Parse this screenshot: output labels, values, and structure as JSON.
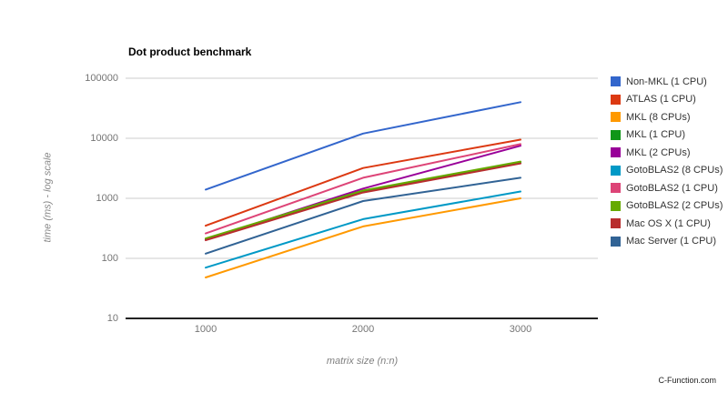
{
  "watermark": "C-Function.com",
  "chart_data": {
    "type": "line",
    "title": "Dot product benchmark",
    "xlabel": "matrix size (n:n)",
    "ylabel": "time (ms) - log scale",
    "y_scale": "log10",
    "ylim": [
      10,
      100000
    ],
    "grid": true,
    "legend_position": "right",
    "x": [
      1000,
      2000,
      3000
    ],
    "x_tick_labels": [
      "1000",
      "2000",
      "3000"
    ],
    "y_ticks": [
      100000,
      10000,
      1000,
      100,
      10
    ],
    "axis_color": "#222222",
    "gridline_color": "#cccccc",
    "series": [
      {
        "name": "Non-MKL (1 CPU)",
        "color": "#3366CC",
        "values": [
          1400,
          12000,
          40000
        ]
      },
      {
        "name": "ATLAS (1 CPU)",
        "color": "#DC3912",
        "values": [
          350,
          3200,
          9500
        ]
      },
      {
        "name": "MKL (8 CPUs)",
        "color": "#FF9900",
        "values": [
          48,
          340,
          1000
        ]
      },
      {
        "name": "MKL (1 CPU)",
        "color": "#109618",
        "values": [
          210,
          1300,
          3900
        ]
      },
      {
        "name": "MKL (2 CPUs)",
        "color": "#990099",
        "values": [
          205,
          1450,
          7500
        ]
      },
      {
        "name": "GotoBLAS2 (8 CPUs)",
        "color": "#0099C6",
        "values": [
          70,
          450,
          1300
        ]
      },
      {
        "name": "GotoBLAS2 (1 CPU)",
        "color": "#DD4477",
        "values": [
          260,
          2200,
          8000
        ]
      },
      {
        "name": "GotoBLAS2 (2 CPUs)",
        "color": "#66AA00",
        "values": [
          215,
          1350,
          4100
        ]
      },
      {
        "name": "Mac OS X (1 CPU)",
        "color": "#B82E2E",
        "values": [
          200,
          1250,
          3800
        ]
      },
      {
        "name": "Mac Server (1 CPU)",
        "color": "#316395",
        "values": [
          120,
          900,
          2200
        ]
      }
    ]
  }
}
